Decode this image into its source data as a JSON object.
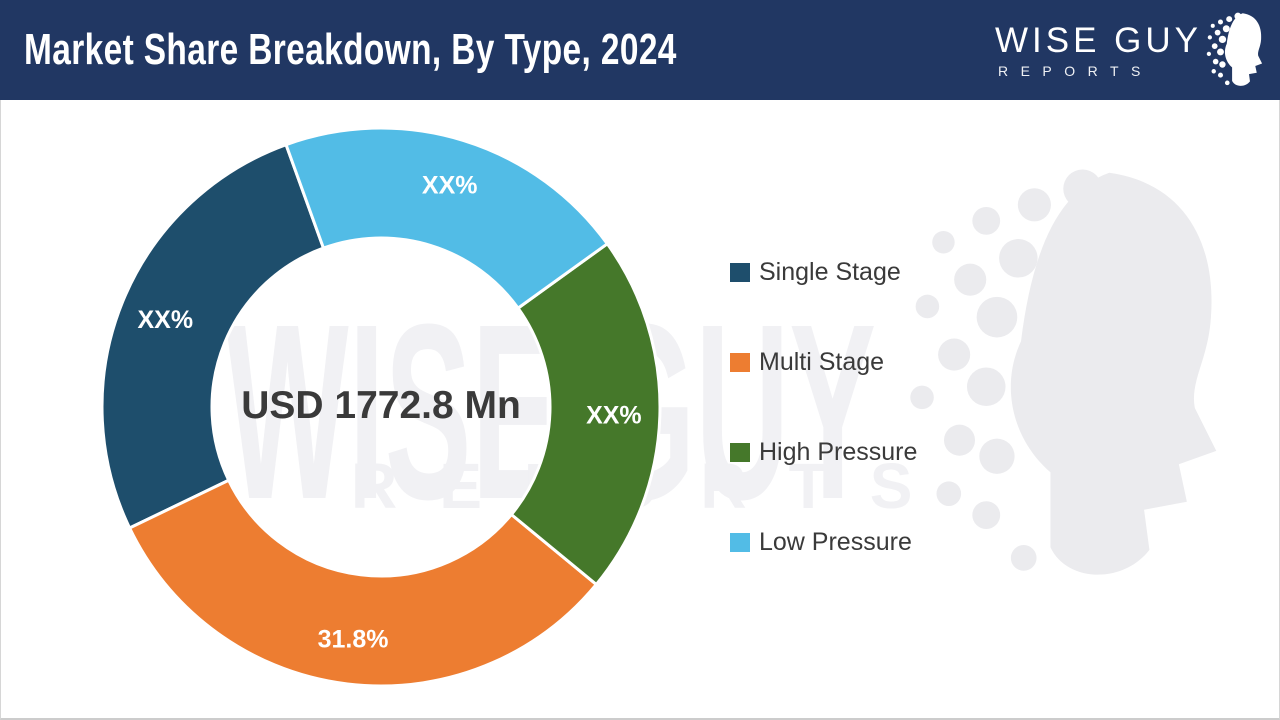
{
  "header": {
    "title": "Market Share Breakdown, By Type, 2024",
    "background_color": "#213763",
    "logo": {
      "name": "WISE GUY",
      "sub": "REPORTS"
    }
  },
  "watermark": {
    "line1": "WISE GUY",
    "line2": "REPORTS",
    "text_color": "#f1f1f4",
    "face_color": "#ebebee"
  },
  "chart_data": {
    "type": "donut",
    "title": "Market Share Breakdown, By Type, 2024",
    "center_label": "USD 1772.8 Mn",
    "legend_position": "right",
    "outer_radius": 279,
    "inner_radius": 169,
    "label_radius": 233,
    "slice_label_color": "#ffffff",
    "center_label_color": "#3a3a3a",
    "segments": [
      {
        "name": "Single Stage",
        "display_label": "XX%",
        "value_pct": 26.6,
        "color": "#1E4E6C",
        "start_angle": 244.3,
        "end_angle": 340.1
      },
      {
        "name": "Multi Stage",
        "display_label": "31.8%",
        "value_pct": 31.8,
        "color": "#ED7D31",
        "start_angle": 129.5,
        "end_angle": 244.3
      },
      {
        "name": "High Pressure",
        "display_label": "XX%",
        "value_pct": 20.9,
        "color": "#45782A",
        "start_angle": 54.2,
        "end_angle": 129.5
      },
      {
        "name": "Low Pressure",
        "display_label": "XX%",
        "value_pct": 20.7,
        "color": "#52BCE6",
        "start_angle": 340.1,
        "end_angle": 414.2
      }
    ]
  },
  "legend": {
    "text_color": "#3a3a3a",
    "items": [
      "Single Stage",
      "Multi Stage",
      "High Pressure",
      "Low Pressure"
    ]
  }
}
